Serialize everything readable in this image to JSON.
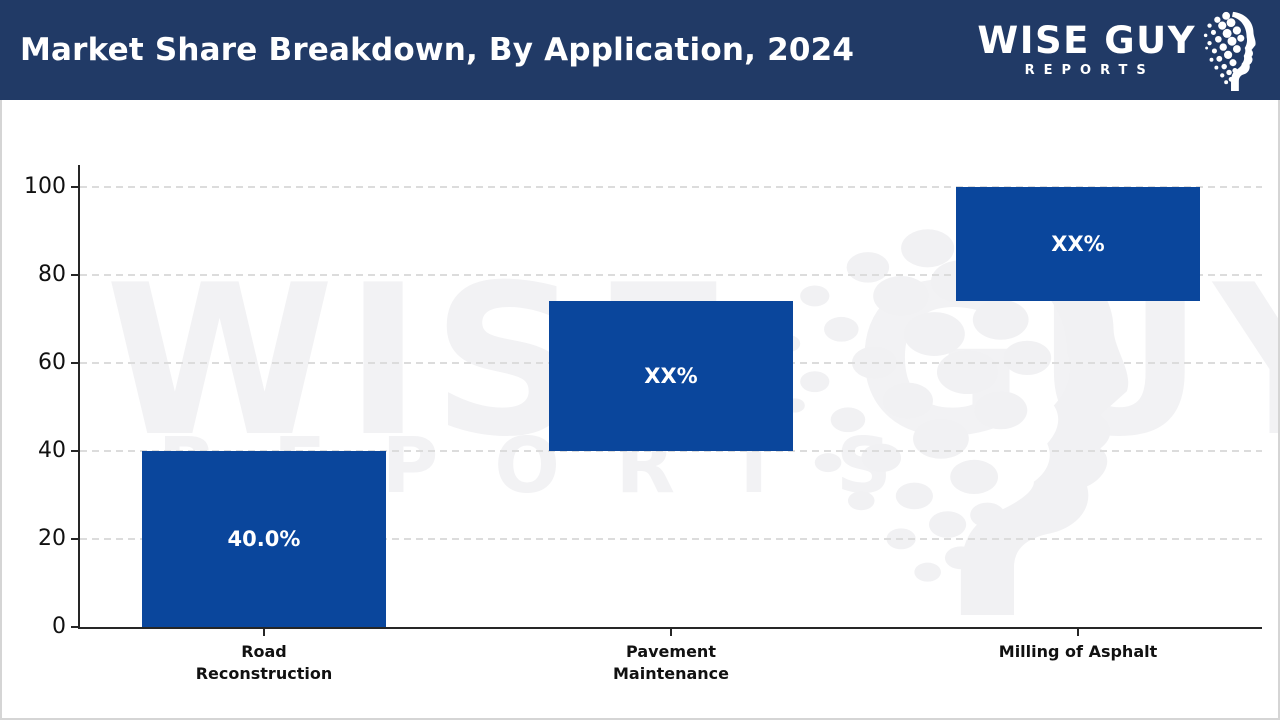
{
  "header": {
    "title": "Market Share Breakdown, By Application, 2024",
    "logo": {
      "brand": "WISE GUY",
      "sub": "REPORTS"
    }
  },
  "watermark": {
    "brand": "WISE GUY",
    "sub": "REPORTS"
  },
  "chart_data": {
    "type": "bar",
    "variant": "stacked-waterfall",
    "title": "Market Share Breakdown, By Application, 2024",
    "categories": [
      "Road\nReconstruction",
      "Pavement\nMaintenance",
      "Milling of Asphalt"
    ],
    "segments": [
      {
        "name": "Road Reconstruction",
        "start": 0,
        "end": 40,
        "value": 40.0,
        "label": "40.0%"
      },
      {
        "name": "Pavement Maintenance",
        "start": 40,
        "end": 74,
        "value": 34.0,
        "label": "XX%"
      },
      {
        "name": "Milling of Asphalt",
        "start": 74,
        "end": 100,
        "value": 26.0,
        "label": "XX%"
      }
    ],
    "yticks": [
      0,
      20,
      40,
      60,
      80,
      100
    ],
    "ylim": [
      0,
      105
    ],
    "grid": {
      "axis": "y",
      "style": "dashed"
    },
    "legend": "none",
    "colors": {
      "bar": "#0a469c",
      "bar_label": "#ffffff",
      "axis": "#262626",
      "grid": "#dcdcdc",
      "tick_label": "#111111",
      "category_label": "#111111",
      "header_bg": "#213a66",
      "header_text": "#ffffff"
    }
  }
}
